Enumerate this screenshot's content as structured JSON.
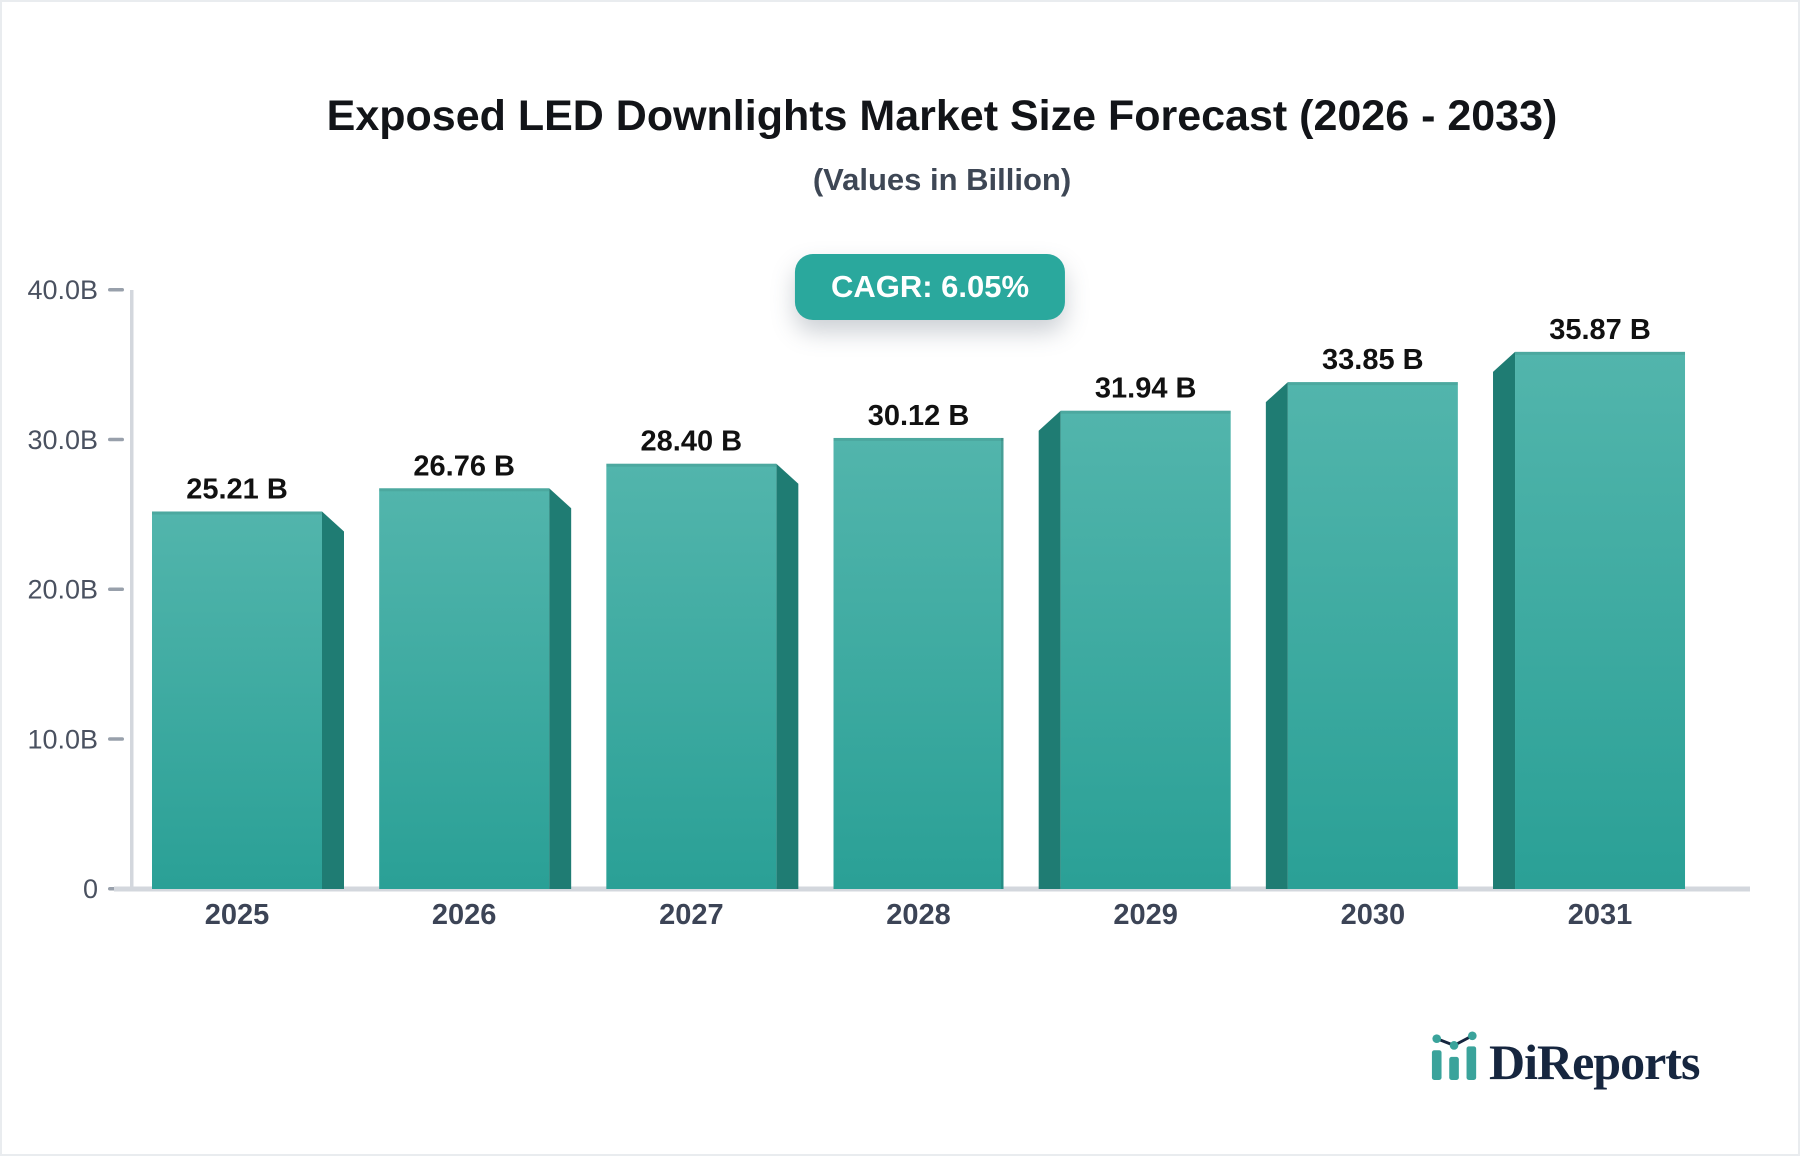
{
  "chart_data": {
    "type": "bar",
    "title": "Exposed LED Downlights Market Size Forecast (2026 - 2033)",
    "subtitle": "(Values in Billion)",
    "unit": "Billion",
    "categories": [
      "2025",
      "2026",
      "2027",
      "2028",
      "2029",
      "2030",
      "2031"
    ],
    "values": [
      25.21,
      26.76,
      28.4,
      30.12,
      31.94,
      33.85,
      35.87
    ],
    "value_labels": [
      "25.21 B",
      "26.76 B",
      "28.40 B",
      "30.12 B",
      "31.94 B",
      "33.85 B",
      "35.87 B"
    ],
    "ylim": [
      0,
      40
    ],
    "yticks": [
      {
        "value": 0,
        "label": "0"
      },
      {
        "value": 10,
        "label": "10.0B"
      },
      {
        "value": 20,
        "label": "20.0B"
      },
      {
        "value": 30,
        "label": "30.0B"
      },
      {
        "value": 40,
        "label": "40.0B"
      }
    ],
    "grid": false,
    "legend_position": "none",
    "colors": {
      "bar_top": "#52b5ac",
      "bar_bottom": "#2aa096",
      "bar_side": "#1f7c73",
      "axis_line": "#d3d7dd",
      "tick_mark": "#98a0ab",
      "tick_label": "#4a5160",
      "x_label": "#3c4456",
      "value_label": "#111111"
    }
  },
  "badge": {
    "label": "CAGR: 6.05%",
    "background": "#2aa89d",
    "text_color": "#ffffff"
  },
  "logo": {
    "text": "DiReports",
    "icon": "mini-bar-chart-icon",
    "text_color": "#16263f",
    "accent": "#3aa39b"
  }
}
